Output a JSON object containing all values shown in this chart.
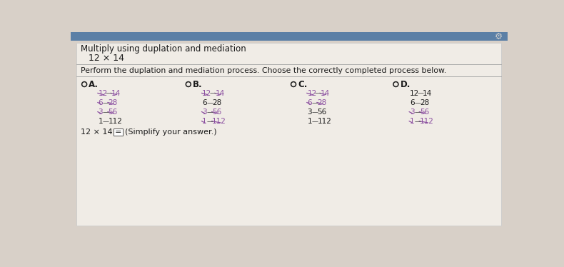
{
  "title": "Multiply using duplation and mediation",
  "subtitle": "12 × 14",
  "instruction": "Perform the duplation and mediation process. Choose the correctly completed process below.",
  "top_bar_color": "#5b7fa6",
  "bg_color": "#d8d0c8",
  "panel_color": "#f0ece6",
  "divider_color": "#aaaaaa",
  "options": [
    {
      "label": "A.",
      "rows": [
        {
          "left": "12",
          "right": "14",
          "left_strike": true,
          "right_strike": true
        },
        {
          "left": "6",
          "right": "28",
          "left_strike": true,
          "right_strike": true
        },
        {
          "left": "3",
          "right": "56",
          "left_strike": true,
          "right_strike": true
        },
        {
          "left": "1",
          "right": "112",
          "left_strike": false,
          "right_strike": false
        }
      ]
    },
    {
      "label": "B.",
      "rows": [
        {
          "left": "12",
          "right": "14",
          "left_strike": true,
          "right_strike": true
        },
        {
          "left": "6",
          "right": "28",
          "left_strike": false,
          "right_strike": false
        },
        {
          "left": "3",
          "right": "56",
          "left_strike": true,
          "right_strike": true
        },
        {
          "left": "1",
          "right": "112",
          "left_strike": true,
          "right_strike": true
        }
      ]
    },
    {
      "label": "C.",
      "rows": [
        {
          "left": "12",
          "right": "14",
          "left_strike": true,
          "right_strike": true
        },
        {
          "left": "6",
          "right": "28",
          "left_strike": true,
          "right_strike": true
        },
        {
          "left": "3",
          "right": "56",
          "left_strike": false,
          "right_strike": false
        },
        {
          "left": "1",
          "right": "112",
          "left_strike": false,
          "right_strike": false
        }
      ]
    },
    {
      "label": "D.",
      "rows": [
        {
          "left": "12",
          "right": "14",
          "left_strike": false,
          "right_strike": false
        },
        {
          "left": "6",
          "right": "28",
          "left_strike": false,
          "right_strike": false
        },
        {
          "left": "3",
          "right": "56",
          "left_strike": true,
          "right_strike": true
        },
        {
          "left": "1",
          "right": "112",
          "left_strike": true,
          "right_strike": true
        }
      ]
    }
  ],
  "text_color_normal": "#1a1a1a",
  "text_color_struck": "#8b4fa0",
  "strike_color": "#8b4fa0",
  "radio_color": "#1a1a1a",
  "title_fontsize": 8.5,
  "subtitle_fontsize": 9.0,
  "instruction_fontsize": 7.8,
  "option_label_fontsize": 8.5,
  "row_fontsize": 7.5,
  "answer_fontsize": 8.0,
  "gear_color": "#888888"
}
